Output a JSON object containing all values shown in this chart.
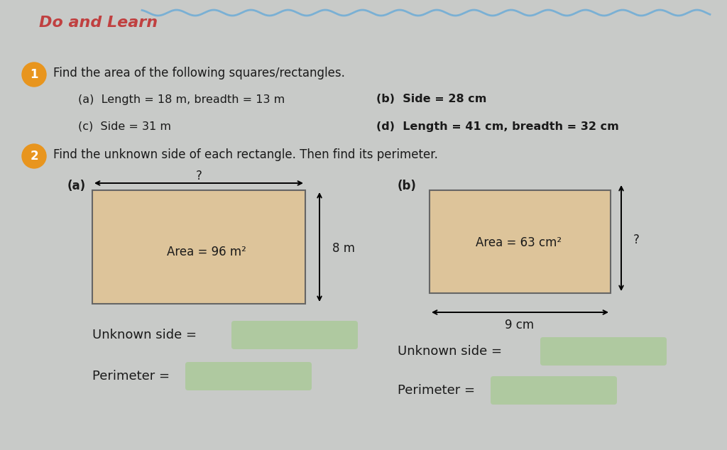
{
  "bg_color": "#c8cac8",
  "title_text": "Do and Learn",
  "q1_circle_color": "#e8951e",
  "q2_circle_color": "#e8951e",
  "q1_label": "1",
  "q2_label": "2",
  "q1_heading": "Find the area of the following squares/rectangles.",
  "q1_part_a": "(a)  Length = 18 m, breadth = 13 m",
  "q1_part_b": "(b)  Side = 28 cm",
  "q1_part_c": "(c)  Side = 31 m",
  "q1_part_d": "(d)  Length = 41 cm, breadth = 32 cm",
  "q2_heading": "Find the unknown side of each rectangle. Then find its perimeter.",
  "rect_a_color": "#ddc49a",
  "rect_b_color": "#ddc49a",
  "rect_a_area": "Area = 96 m²",
  "rect_a_side": "8 m",
  "rect_a_unknown": "?",
  "rect_b_area": "Area = 63 cm²",
  "rect_b_side": "9 cm",
  "rect_b_unknown": "?",
  "answer_box_color": "#afc9a0",
  "sub_a_label": "(a)",
  "sub_b_label": "(b)",
  "unknown_side_label": "Unknown side =",
  "perimeter_label": "Perimeter =",
  "wave_color": "#7ab0d4",
  "text_color": "#1a1a1a",
  "title_color": "#c04040"
}
